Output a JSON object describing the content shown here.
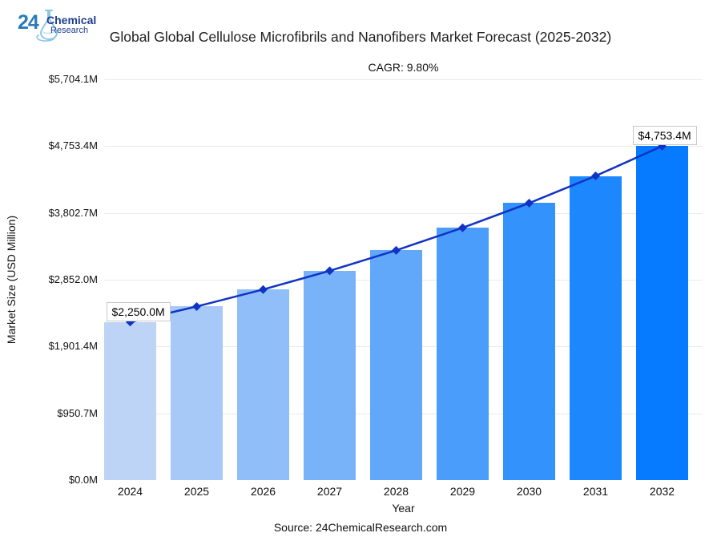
{
  "logo": {
    "number": "24",
    "name_top": "Chemical",
    "name_bottom": "Research"
  },
  "header": {
    "title": "Global Global Cellulose Microfibrils and Nanofibers Market Forecast (2025-2032)",
    "subtitle": "CAGR: 9.80%"
  },
  "y_axis": {
    "title": "Market Size (USD Million)",
    "tick_labels": [
      "$5,704.1M",
      "$4,753.4M",
      "$3,802.7M",
      "$2,852.0M",
      "$1,901.4M",
      "$950.7M",
      "$0.0M"
    ]
  },
  "x_axis": {
    "title": "Year"
  },
  "footer": {
    "source": "Source: 24ChemicalResearch.com"
  },
  "chart_data": {
    "type": "bar",
    "overlay": "line",
    "title": "Global Global Cellulose Microfibrils and Nanofibers Market Forecast (2025-2032)",
    "subtitle": "CAGR: 9.80%",
    "xlabel": "Year",
    "ylabel": "Market Size (USD Million)",
    "unit": "USD Million",
    "cagr_percent": 9.8,
    "categories": [
      "2024",
      "2025",
      "2026",
      "2027",
      "2028",
      "2029",
      "2030",
      "2031",
      "2032"
    ],
    "values": [
      2250.0,
      2470.5,
      2712.6,
      2978.4,
      3270.3,
      3590.8,
      3942.7,
      4329.1,
      4753.4
    ],
    "ylim": [
      0,
      5704.1
    ],
    "y_ticks": [
      0,
      950.7,
      1901.4,
      2852.0,
      3802.7,
      4753.4,
      5704.1
    ],
    "grid": true,
    "legend": false,
    "bar_colors": [
      "#bdd4f6",
      "#a6c9f7",
      "#8fbef8",
      "#78b3f9",
      "#61a8fa",
      "#4b9dfb",
      "#3492fc",
      "#1d87fd",
      "#067bff"
    ],
    "line_color": "#1133c4",
    "annotations": [
      {
        "category": "2024",
        "label": "$2,250.0M"
      },
      {
        "category": "2032",
        "label": "$4,753.4M"
      }
    ]
  }
}
